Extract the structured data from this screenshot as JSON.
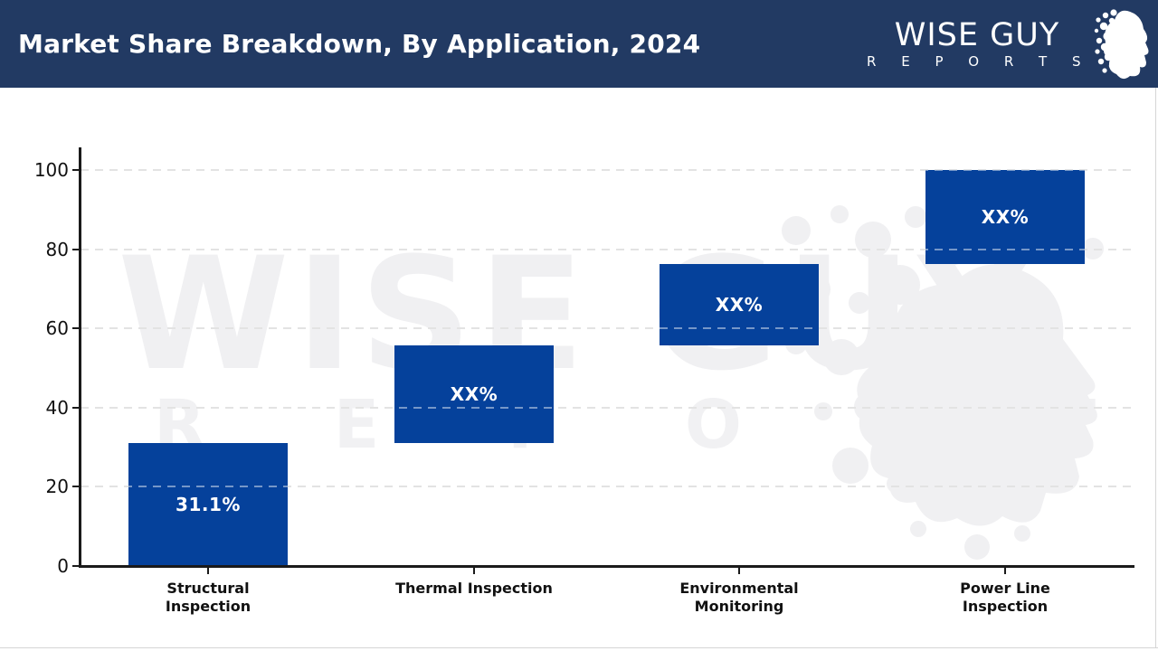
{
  "header": {
    "title": "Market Share Breakdown, By Application, 2024",
    "bg_color": "#223a63",
    "logo": {
      "line1": "WISE GUY",
      "line2": "R E P O R T S"
    }
  },
  "watermark": {
    "line1": "WISE GUY",
    "line2": "R E P O R T S"
  },
  "colors": {
    "header_bg": "#223a63",
    "bar_blue": "#05419b",
    "grid_gray": "#cccccc",
    "axis_black": "#1a1a1a",
    "watermark_gray": "#f0f0f2",
    "value_label_white": "#ffffff",
    "tick_label_black": "#111111"
  },
  "chart_data": {
    "type": "bar",
    "subtype": "waterfall-floating-segments",
    "title": "Market Share Breakdown, By Application, 2024",
    "categories": [
      "Structural\nInspection",
      "Thermal Inspection",
      "Environmental\nMonitoring",
      "Power Line\nInspection"
    ],
    "series": [
      {
        "name": "Market Share",
        "segments": [
          {
            "category": "Structural Inspection",
            "start": 0,
            "end": 31.1,
            "label": "31.1%"
          },
          {
            "category": "Thermal Inspection",
            "start": 31.1,
            "end": 55.6,
            "label": "XX%"
          },
          {
            "category": "Environmental Monitoring",
            "start": 55.6,
            "end": 76.2,
            "label": "XX%"
          },
          {
            "category": "Power Line Inspection",
            "start": 76.2,
            "end": 100,
            "label": "XX%"
          }
        ]
      }
    ],
    "xlabel": "",
    "ylabel": "",
    "ylim": [
      0,
      100
    ],
    "yticks": [
      0,
      20,
      40,
      60,
      80,
      100
    ],
    "grid": "horizontal-dashed",
    "legend": "none"
  }
}
